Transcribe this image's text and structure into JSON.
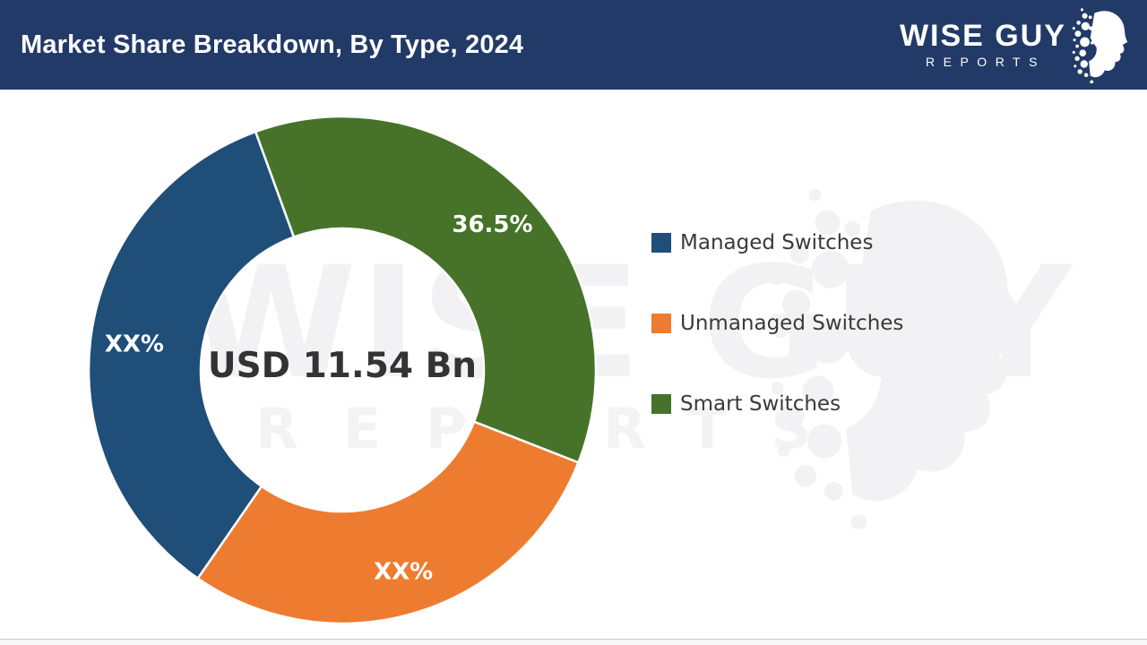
{
  "header": {
    "title": "Market Share Breakdown, By Type, 2024",
    "logo": {
      "line1": "WISE GUY",
      "line2": "REPORTS"
    }
  },
  "watermark": {
    "line1": "WISE GUY",
    "line2": "REPORTS"
  },
  "chart_data": {
    "type": "donut",
    "title": "Market Share Breakdown, By Type, 2024",
    "center_label": "USD 11.54 Bn",
    "start_angle_deg": 110,
    "direction": "counterclockwise",
    "legend_position": "right",
    "hole_radius_ratio": 0.56,
    "categories": [
      "Managed Switches",
      "Unmanaged Switches",
      "Smart Switches"
    ],
    "values_pct": [
      34.8,
      28.7,
      36.5
    ],
    "slices": [
      {
        "name": "Managed Switches",
        "display_label": "XX%",
        "value_pct": 34.8,
        "color": "#1F4E79"
      },
      {
        "name": "Unmanaged Switches",
        "display_label": "XX%",
        "value_pct": 28.7,
        "color": "#ED7C31"
      },
      {
        "name": "Smart Switches",
        "display_label": "36.5%",
        "value_pct": 36.5,
        "color": "#467329"
      }
    ]
  },
  "colors": {
    "header_bg": "#223A67",
    "slice_border": "#FFFFFF",
    "center_text": "#333333",
    "legend_text": "#3A3A3A",
    "watermark": "#F2F2F5"
  }
}
